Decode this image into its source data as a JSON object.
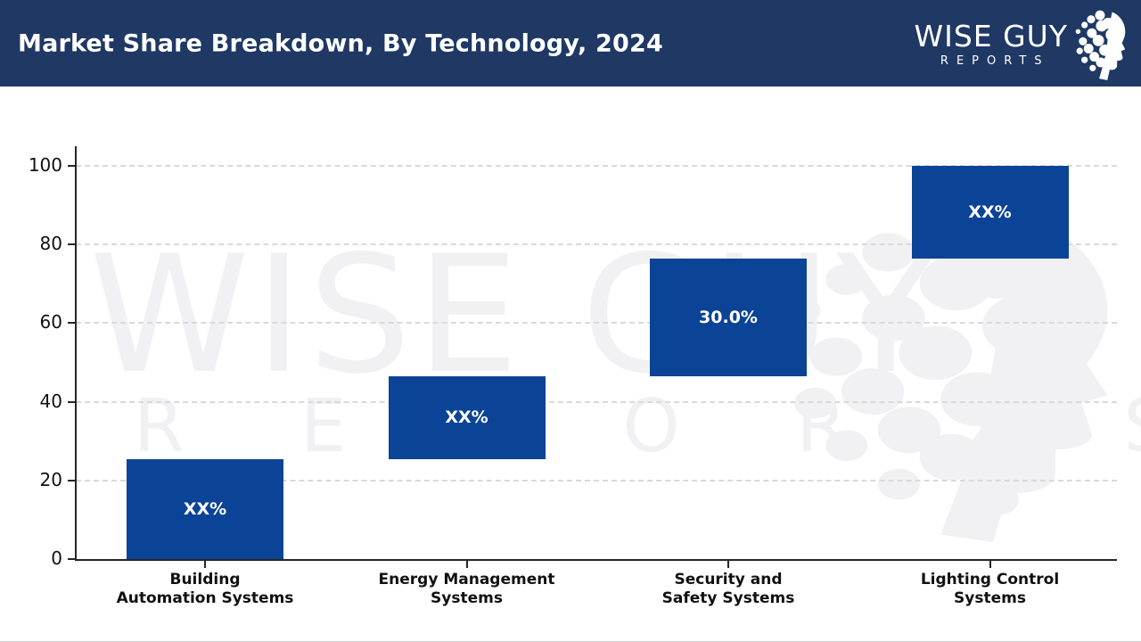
{
  "header": {
    "title": "Market Share Breakdown, By Technology, 2024",
    "logo": {
      "brand_top": "WISE GUY",
      "brand_bottom": "REPORTS"
    }
  },
  "watermark": {
    "brand_top": "WISE GUY",
    "brand_bottom": "R E P O R T S"
  },
  "chart_data": {
    "type": "bar",
    "variant": "floating-segment-waterfall",
    "title": "Market Share Breakdown, By Technology, 2024",
    "categories": [
      "Building\nAutomation Systems",
      "Energy Management\nSystems",
      "Security and\nSafety Systems",
      "Lighting Control\nSystems"
    ],
    "segments": [
      {
        "category": "Building Automation Systems",
        "start": 0,
        "end": 25.5,
        "label": "XX%"
      },
      {
        "category": "Energy Management Systems",
        "start": 25.5,
        "end": 46.5,
        "label": "XX%"
      },
      {
        "category": "Security and Safety Systems",
        "start": 46.5,
        "end": 76.5,
        "label": "30.0%"
      },
      {
        "category": "Lighting Control Systems",
        "start": 76.5,
        "end": 100,
        "label": "XX%"
      }
    ],
    "y_axis": {
      "ticks": [
        0,
        20,
        40,
        60,
        80,
        100
      ],
      "tick_labels": [
        "0",
        "20",
        "40",
        "60",
        "80",
        "100"
      ],
      "range": [
        0,
        105
      ]
    },
    "xlabel": "",
    "ylabel": "",
    "grid": "horizontal-dashed",
    "legend": "none",
    "colors": {
      "bar": "#0B4397",
      "bar_label": "#FFFFFF",
      "header_bg": "#1F3864",
      "grid": "#D9D9D9",
      "axis": "#262626",
      "tick_text": "#111111",
      "watermark": "#F1F1F3"
    }
  }
}
